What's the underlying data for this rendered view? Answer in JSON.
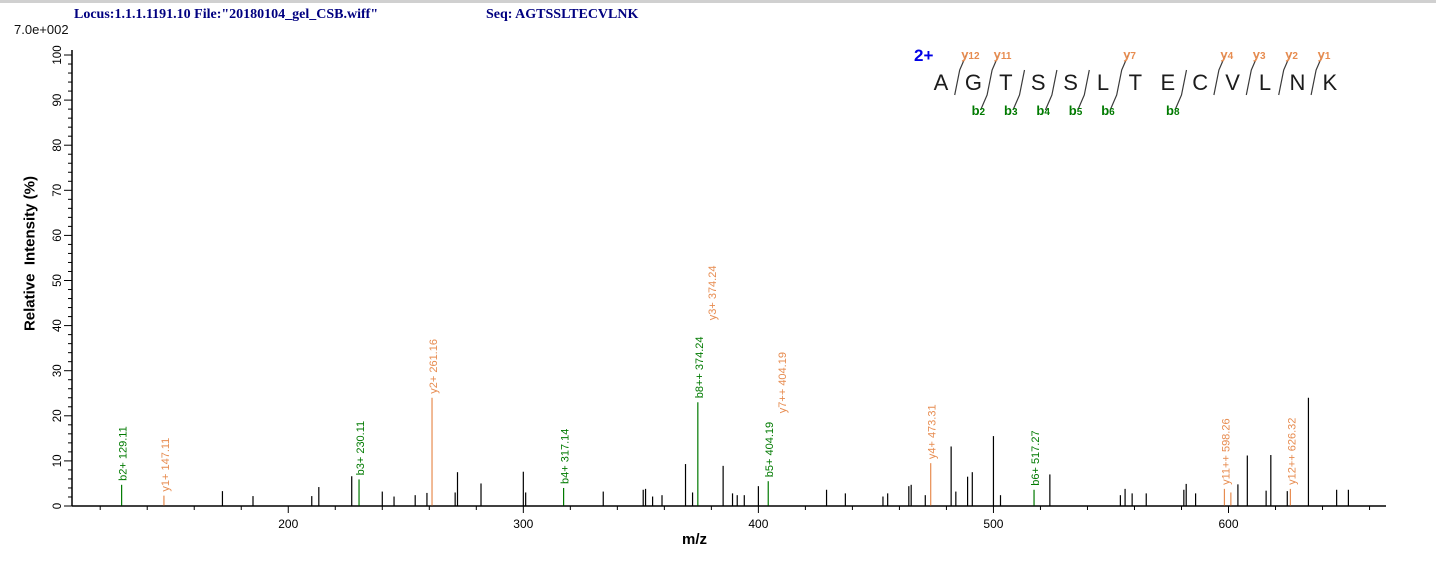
{
  "header": {
    "locus_file": "Locus:1.1.1.1191.10 File:\"20180104_gel_CSB.wiff\"",
    "seq": "Seq: AGTSSLTECVLNK",
    "scale": "7.0e+002"
  },
  "colors": {
    "b_ion": "#007A00",
    "y_ion": "#E78C50",
    "peak_black": "#000000",
    "header_navy": "#000080",
    "charge_blue": "#0000E6"
  },
  "axes": {
    "x": {
      "label": "m/z",
      "major_ticks": [
        200,
        300,
        400,
        500,
        600
      ],
      "minor_step": 20
    },
    "y": {
      "label": "Relative  Intensity (%)",
      "major_step": 10,
      "minor_step": 2
    }
  },
  "fragmentation": {
    "charge": "2+",
    "sequence": "AGTSSLTECVLNK",
    "y_ions": [
      {
        "label": "y",
        "n": "12",
        "gap": 1
      },
      {
        "label": "y",
        "n": "11",
        "gap": 2
      },
      {
        "label": "y",
        "n": "7",
        "gap": 6
      },
      {
        "label": "y",
        "n": "4",
        "gap": 9
      },
      {
        "label": "y",
        "n": "3",
        "gap": 10
      },
      {
        "label": "y",
        "n": "2",
        "gap": 11
      },
      {
        "label": "y",
        "n": "1",
        "gap": 12
      }
    ],
    "b_ions": [
      {
        "label": "b",
        "n": "2",
        "gap": 2
      },
      {
        "label": "b",
        "n": "3",
        "gap": 3
      },
      {
        "label": "b",
        "n": "4",
        "gap": 4
      },
      {
        "label": "b",
        "n": "5",
        "gap": 5
      },
      {
        "label": "b",
        "n": "6",
        "gap": 6
      },
      {
        "label": "b",
        "n": "8",
        "gap": 8
      }
    ]
  },
  "chart_data": {
    "type": "bar",
    "subtype": "mass-spectrum",
    "title": "MS/MS spectrum of AGTSSLTECVLNK (2+)",
    "xlabel": "m/z",
    "ylabel": "Relative  Intensity (%)",
    "xlim": [
      108,
      667
    ],
    "ylim": [
      0,
      100
    ],
    "intensity_scale": "7.0e+002",
    "peptide_sequence": "AGTSSLTECVLNK",
    "precursor_charge": "2+",
    "peaks": [
      {
        "mz": 129.11,
        "intensity": 4.7,
        "ion": "b",
        "labels": [
          {
            "text": "b2+ 129.11",
            "ion": "b"
          }
        ]
      },
      {
        "mz": 147.11,
        "intensity": 2.3,
        "ion": "y",
        "labels": [
          {
            "text": "y1+ 147.11",
            "ion": "y"
          }
        ]
      },
      {
        "mz": 172,
        "intensity": 3.3
      },
      {
        "mz": 185,
        "intensity": 2.2
      },
      {
        "mz": 210,
        "intensity": 2.2
      },
      {
        "mz": 213,
        "intensity": 4.2
      },
      {
        "mz": 227,
        "intensity": 6.6
      },
      {
        "mz": 230.11,
        "intensity": 5.9,
        "ion": "b",
        "labels": [
          {
            "text": "b3+ 230.11",
            "ion": "b"
          }
        ]
      },
      {
        "mz": 240,
        "intensity": 3.2
      },
      {
        "mz": 245,
        "intensity": 2.1
      },
      {
        "mz": 254,
        "intensity": 2.4
      },
      {
        "mz": 259,
        "intensity": 2.9
      },
      {
        "mz": 261.16,
        "intensity": 24.0,
        "ion": "y",
        "labels": [
          {
            "text": "y2+ 261.16",
            "ion": "y"
          }
        ]
      },
      {
        "mz": 271,
        "intensity": 3.0
      },
      {
        "mz": 272,
        "intensity": 7.5
      },
      {
        "mz": 282,
        "intensity": 5.0
      },
      {
        "mz": 300,
        "intensity": 7.6
      },
      {
        "mz": 301,
        "intensity": 3.0
      },
      {
        "mz": 317.14,
        "intensity": 4.0,
        "ion": "b",
        "labels": [
          {
            "text": "b4+ 317.14",
            "ion": "b"
          }
        ]
      },
      {
        "mz": 334,
        "intensity": 3.2
      },
      {
        "mz": 351,
        "intensity": 3.6
      },
      {
        "mz": 352,
        "intensity": 3.8
      },
      {
        "mz": 355,
        "intensity": 2.1
      },
      {
        "mz": 359,
        "intensity": 2.4
      },
      {
        "mz": 369,
        "intensity": 9.3
      },
      {
        "mz": 372,
        "intensity": 3.0
      },
      {
        "mz": 374.24,
        "intensity": 23.0,
        "ion": "b",
        "labels": [
          {
            "text": "b8++ 374.24",
            "ion": "b"
          },
          {
            "text": "y3+ 374.24",
            "ion": "y",
            "dx": 13,
            "dy": -78
          }
        ]
      },
      {
        "mz": 385,
        "intensity": 8.9
      },
      {
        "mz": 389,
        "intensity": 2.8
      },
      {
        "mz": 391,
        "intensity": 2.4
      },
      {
        "mz": 394,
        "intensity": 2.4
      },
      {
        "mz": 400,
        "intensity": 4.4
      },
      {
        "mz": 404.19,
        "intensity": 5.5,
        "ion": "b",
        "labels": [
          {
            "text": "b5+ 404.19",
            "ion": "b"
          },
          {
            "text": "y7++ 404.19",
            "ion": "y",
            "dx": 13,
            "dy": -64
          }
        ]
      },
      {
        "mz": 429,
        "intensity": 3.6
      },
      {
        "mz": 437,
        "intensity": 2.8
      },
      {
        "mz": 453,
        "intensity": 2.1
      },
      {
        "mz": 455,
        "intensity": 2.8
      },
      {
        "mz": 464,
        "intensity": 4.4
      },
      {
        "mz": 465,
        "intensity": 4.7
      },
      {
        "mz": 471,
        "intensity": 2.4
      },
      {
        "mz": 473.31,
        "intensity": 9.5,
        "ion": "y",
        "labels": [
          {
            "text": "y4+ 473.31",
            "ion": "y"
          }
        ]
      },
      {
        "mz": 482,
        "intensity": 13.2
      },
      {
        "mz": 484,
        "intensity": 3.2
      },
      {
        "mz": 489,
        "intensity": 6.5
      },
      {
        "mz": 491,
        "intensity": 7.5
      },
      {
        "mz": 500,
        "intensity": 15.5
      },
      {
        "mz": 503,
        "intensity": 2.4
      },
      {
        "mz": 517.27,
        "intensity": 3.6,
        "ion": "b",
        "labels": [
          {
            "text": "b6+ 517.27",
            "ion": "b"
          }
        ]
      },
      {
        "mz": 524,
        "intensity": 7.0
      },
      {
        "mz": 554,
        "intensity": 2.4
      },
      {
        "mz": 556,
        "intensity": 3.8
      },
      {
        "mz": 559,
        "intensity": 2.8
      },
      {
        "mz": 565,
        "intensity": 2.8
      },
      {
        "mz": 581,
        "intensity": 3.6
      },
      {
        "mz": 582,
        "intensity": 4.9
      },
      {
        "mz": 586,
        "intensity": 2.8
      },
      {
        "mz": 598.26,
        "intensity": 3.8,
        "ion": "y",
        "labels": [
          {
            "text": "y11++ 598.26",
            "ion": "y"
          }
        ]
      },
      {
        "mz": 601,
        "intensity": 3.0,
        "ion": "y"
      },
      {
        "mz": 604,
        "intensity": 4.8
      },
      {
        "mz": 608,
        "intensity": 11.2
      },
      {
        "mz": 616,
        "intensity": 3.4
      },
      {
        "mz": 618,
        "intensity": 11.3
      },
      {
        "mz": 625,
        "intensity": 3.3
      },
      {
        "mz": 626.32,
        "intensity": 3.8,
        "ion": "y",
        "labels": [
          {
            "text": "y12++ 626.32",
            "ion": "y"
          }
        ]
      },
      {
        "mz": 634,
        "intensity": 24.0
      },
      {
        "mz": 646,
        "intensity": 3.6
      },
      {
        "mz": 651,
        "intensity": 3.6
      }
    ]
  }
}
